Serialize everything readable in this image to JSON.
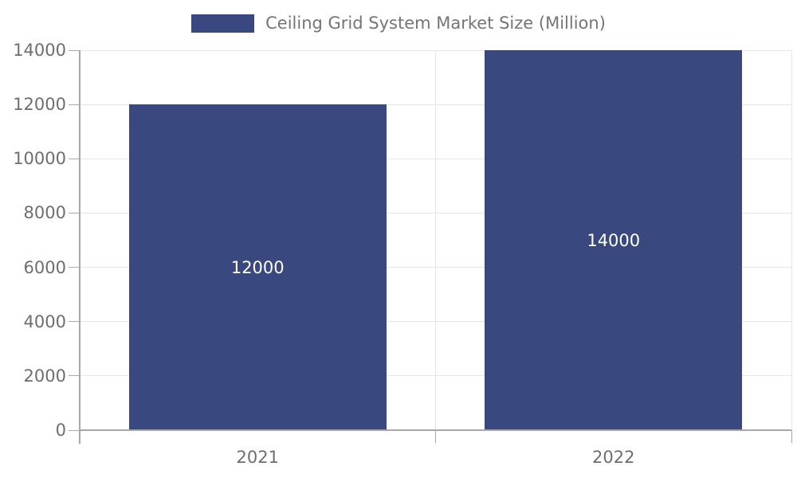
{
  "legend": {
    "label": "Ceiling Grid System Market Size (Million)"
  },
  "colors": {
    "bar": "#39487F",
    "bar_label": "#ffffff",
    "grid": "#e6e6e6",
    "axis": "#a8a8a8",
    "tick_text": "#6e6e6e",
    "legend_text": "#757575",
    "background": "#ffffff"
  },
  "chart_data": {
    "type": "bar",
    "title": "Ceiling Grid System Market Size (Million)",
    "categories": [
      "2021",
      "2022"
    ],
    "values": [
      12000,
      14000
    ],
    "bar_labels": [
      "12000",
      "14000"
    ],
    "series": [
      {
        "name": "Ceiling Grid System Market Size (Million)",
        "values": [
          12000,
          14000
        ]
      }
    ],
    "xlabel": "",
    "ylabel": "",
    "ylim": [
      0,
      14000
    ],
    "ytick_step": 2000,
    "ytick_labels": [
      "0",
      "2000",
      "4000",
      "6000",
      "8000",
      "10000",
      "12000",
      "14000"
    ],
    "grid": true,
    "legend_position": "top-center"
  }
}
